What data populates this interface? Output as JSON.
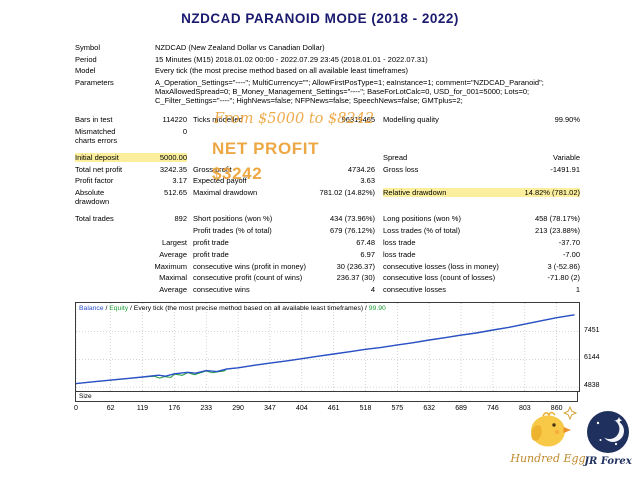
{
  "title": "NZDCAD PARANOID MODE (2018 - 2022)",
  "colors": {
    "title": "#1a1a6e",
    "accent_orange": "#eda43c",
    "highlight_yellow": "#fbef9e",
    "balance_blue": "#2b50c8",
    "equity_green": "#1e9b38",
    "logo_navy": "#20305e",
    "logo_gold": "#c08a2e"
  },
  "report": {
    "info_rows": [
      {
        "label": "Symbol",
        "value": "NZDCAD (New Zealand Dollar vs Canadian Dollar)"
      },
      {
        "label": "Period",
        "value": "15 Minutes (M15) 2018.01.02 00:00 - 2022.07.29 23:45 (2018.01.01 - 2022.07.31)"
      },
      {
        "label": "Model",
        "value": "Every tick (the most precise method based on all available least timeframes)"
      },
      {
        "label": "Parameters",
        "value": "A_Operation_Settings=\"----\"; MultiCurrency=\"\"; AllowFirstPosType=1; eaInstance=1; comment=\"NZDCAD_Paranoid\"; MaxAllowedSpread=0; B_Money_Management_Settings=\"----\"; BaseForLotCalc=0, USD_for_001=5000; Lots=0; C_Filter_Settings=\"----\"; HighNews=false; NFPNews=false; SpeechNews=false; GMTplus=2;"
      }
    ],
    "stat_rows": [
      {
        "c1l": "Bars in test",
        "c1v": "114220",
        "c2l": "Ticks modelled",
        "c2v": "96319465",
        "c3l": "Modelling quality",
        "c3v": "99.90%"
      },
      {
        "c1l": "Mismatched charts errors",
        "c1v": "0"
      },
      {
        "gap": 8,
        "hl1": true,
        "c1l": "Initial deposit",
        "c1v": "5000.00",
        "c3l": "Spread",
        "c3v": "Variable"
      },
      {
        "c1l": "Total net profit",
        "c1v": "3242.35",
        "c2l": "Gross profit",
        "c2v": "4734.26",
        "c3l": "Gross loss",
        "c3v": "-1491.91"
      },
      {
        "c1l": "Profit factor",
        "c1v": "3.17",
        "c2l": "Expected payoff",
        "c2v": "3.63"
      },
      {
        "hl3": true,
        "c1l": "Absolute drawdown",
        "c1v": "512.65",
        "c2l": "Maximal drawdown",
        "c2v": "781.02 (14.82%)",
        "c3l": "Relative drawdown",
        "c3v": "14.82% (781.02)"
      },
      {
        "gap": 8,
        "c1l": "Total trades",
        "c1v": "892",
        "c2l": "Short positions (won %)",
        "c2v": "434 (73.96%)",
        "c3l": "Long positions (won %)",
        "c3v": "458 (78.17%)"
      },
      {
        "c2l": "Profit trades (% of total)",
        "c2v": "679 (76.12%)",
        "c3l": "Loss trades (% of total)",
        "c3v": "213 (23.88%)"
      },
      {
        "gap": 3,
        "c1v": "Largest",
        "c2l": "profit trade",
        "c2v": "67.48",
        "c3l": "loss trade",
        "c3v": "-37.70"
      },
      {
        "c1v": "Average",
        "c2l": "profit trade",
        "c2v": "6.97",
        "c3l": "loss trade",
        "c3v": "-7.00"
      },
      {
        "gap": 2,
        "c1v": "Maximum",
        "c2l": "consecutive wins (profit in money)",
        "c2v": "30 (236.37)",
        "c3l": "consecutive losses (loss in money)",
        "c3v": "3 (-52.86)"
      },
      {
        "c1v": "Maximal",
        "c2l": "consecutive profit (count of wins)",
        "c2v": "236.37 (30)",
        "c3l": "consecutive loss (count of losses)",
        "c3v": "-71.80 (2)"
      },
      {
        "c1v": "Average",
        "c2l": "consecutive wins",
        "c2v": "4",
        "c3l": "consecutive losses",
        "c3v": "1"
      }
    ]
  },
  "overlay": {
    "line1": "From $5000 to $8242",
    "line2": "NET PROFIT",
    "line3": "$3242"
  },
  "chart_data": {
    "type": "line",
    "title": "Balance / Equity / Every tick (the most precise method based on all available least timeframes) / 99.90",
    "legend": {
      "balance": "Balance",
      "equity": "Equity",
      "model": "Every tick (the most precise method based on all available least timeframes)",
      "quality": "99.90"
    },
    "size_label": "Size",
    "x_ticks": [
      0,
      62,
      119,
      176,
      233,
      290,
      347,
      404,
      461,
      518,
      575,
      632,
      689,
      746,
      803,
      860
    ],
    "y_ticks": [
      7451,
      6144,
      4838
    ],
    "xlim": [
      0,
      900
    ],
    "ylim": [
      4650,
      8800
    ],
    "grid": true,
    "legend_position": "top-left",
    "series": [
      {
        "name": "Equity",
        "color": "#1e9b38",
        "width": 1,
        "points": [
          [
            0,
            5000
          ],
          [
            30,
            5080
          ],
          [
            62,
            5160
          ],
          [
            90,
            5230
          ],
          [
            119,
            5305
          ],
          [
            140,
            5345
          ],
          [
            150,
            5260
          ],
          [
            158,
            5330
          ],
          [
            170,
            5290
          ],
          [
            176,
            5445
          ],
          [
            190,
            5390
          ],
          [
            200,
            5515
          ],
          [
            212,
            5420
          ],
          [
            222,
            5505
          ],
          [
            233,
            5595
          ],
          [
            244,
            5510
          ],
          [
            255,
            5555
          ],
          [
            265,
            5595
          ],
          [
            270,
            5685
          ],
          [
            290,
            5740
          ],
          [
            320,
            5860
          ],
          [
            347,
            5960
          ],
          [
            378,
            6070
          ],
          [
            404,
            6170
          ],
          [
            432,
            6280
          ],
          [
            461,
            6390
          ],
          [
            490,
            6500
          ],
          [
            518,
            6610
          ],
          [
            546,
            6700
          ],
          [
            575,
            6820
          ],
          [
            602,
            6920
          ],
          [
            632,
            7050
          ],
          [
            660,
            7160
          ],
          [
            689,
            7280
          ],
          [
            716,
            7380
          ],
          [
            746,
            7520
          ],
          [
            775,
            7650
          ],
          [
            803,
            7800
          ],
          [
            831,
            7950
          ],
          [
            860,
            8100
          ],
          [
            892,
            8240
          ]
        ]
      },
      {
        "name": "Balance",
        "color": "#2b50c8",
        "width": 1.4,
        "points": [
          [
            0,
            5000
          ],
          [
            30,
            5085
          ],
          [
            62,
            5165
          ],
          [
            90,
            5235
          ],
          [
            119,
            5310
          ],
          [
            148,
            5395
          ],
          [
            160,
            5350
          ],
          [
            176,
            5460
          ],
          [
            200,
            5530
          ],
          [
            214,
            5490
          ],
          [
            233,
            5610
          ],
          [
            252,
            5565
          ],
          [
            270,
            5690
          ],
          [
            290,
            5745
          ],
          [
            320,
            5865
          ],
          [
            347,
            5965
          ],
          [
            378,
            6075
          ],
          [
            404,
            6175
          ],
          [
            432,
            6285
          ],
          [
            461,
            6395
          ],
          [
            490,
            6505
          ],
          [
            518,
            6615
          ],
          [
            546,
            6705
          ],
          [
            575,
            6825
          ],
          [
            602,
            6925
          ],
          [
            632,
            7055
          ],
          [
            660,
            7165
          ],
          [
            689,
            7285
          ],
          [
            716,
            7385
          ],
          [
            746,
            7525
          ],
          [
            775,
            7655
          ],
          [
            803,
            7805
          ],
          [
            831,
            7955
          ],
          [
            860,
            8105
          ],
          [
            892,
            8242
          ]
        ]
      }
    ]
  },
  "logos": {
    "hundred_egg": "Hundred Egg",
    "jr_forex": "JR Forex"
  }
}
